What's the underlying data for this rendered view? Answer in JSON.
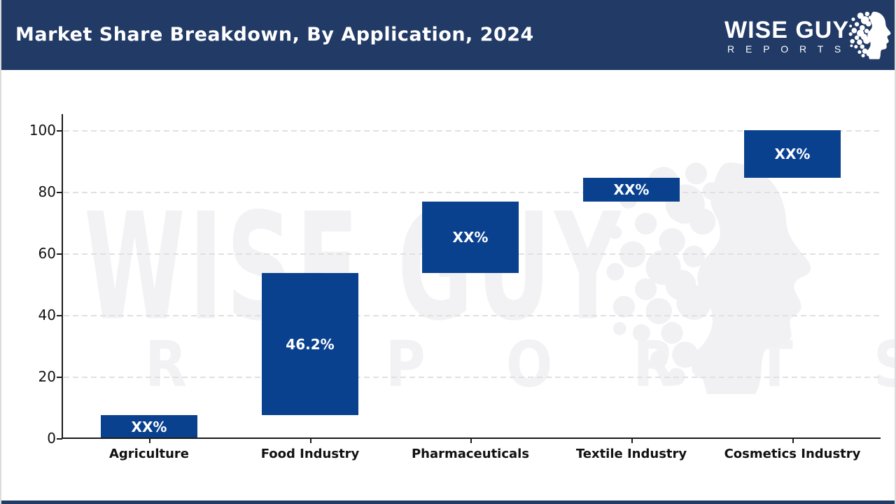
{
  "header": {
    "title": "Market Share Breakdown, By Application, 2024",
    "logo": {
      "line1": "WISE GUY",
      "line2": "R E P O R T S"
    }
  },
  "watermark": {
    "line1": "WISE GUY",
    "line2": "R E P O R T S"
  },
  "chart_data": {
    "type": "bar",
    "subtype": "floating-waterfall",
    "title": "Market Share Breakdown, By Application, 2024",
    "categories": [
      "Agriculture",
      "Food Industry",
      "Pharmaceuticals",
      "Textile Industry",
      "Cosmetics Industry"
    ],
    "bars": [
      {
        "category": "Agriculture",
        "start": 0,
        "end": 7.5,
        "size_pct": 7.5,
        "label": "XX%"
      },
      {
        "category": "Food Industry",
        "start": 7.5,
        "end": 53.7,
        "size_pct": 46.2,
        "label": "46.2%"
      },
      {
        "category": "Pharmaceuticals",
        "start": 53.7,
        "end": 76.8,
        "size_pct": 23.1,
        "label": "XX%"
      },
      {
        "category": "Textile Industry",
        "start": 76.8,
        "end": 84.5,
        "size_pct": 7.7,
        "label": "XX%"
      },
      {
        "category": "Cosmetics Industry",
        "start": 84.5,
        "end": 100,
        "size_pct": 15.5,
        "label": "XX%"
      }
    ],
    "yticks": [
      0,
      20,
      40,
      60,
      80,
      100
    ],
    "ylim": [
      0,
      105
    ],
    "xlabel": "",
    "ylabel": "",
    "grid": "dashed-horizontal",
    "legend": "none",
    "bar_color": "#0a418f",
    "value_label_color": "#ffffff"
  },
  "colors": {
    "header_bg": "#213a66",
    "footer_bg": "#213a66",
    "bar": "#0a418f",
    "grid": "#e0e0e0",
    "axis": "#1a1a1a",
    "watermark": "#f2f2f4"
  }
}
